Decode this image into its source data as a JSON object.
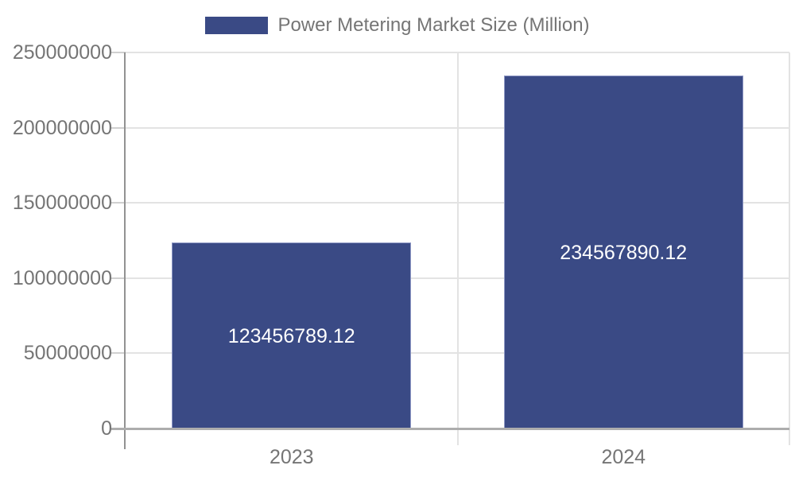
{
  "chart_data": {
    "type": "bar",
    "title": "",
    "legend": "Power Metering Market Size (Million)",
    "legend_position": "top",
    "categories": [
      "2023",
      "2024"
    ],
    "series": [
      {
        "name": "Power Metering Market Size (Million)",
        "values": [
          123456789.12,
          234567890.12
        ],
        "value_labels": [
          "123456789.12",
          "234567890.12"
        ]
      }
    ],
    "ylim": [
      0,
      250000000
    ],
    "yticks": [
      0,
      50000000,
      100000000,
      150000000,
      200000000,
      250000000
    ],
    "ytick_labels": [
      "0",
      "50000000",
      "100000000",
      "150000000",
      "200000000",
      "250000000"
    ],
    "grid": true,
    "colors": {
      "bar": "#3a4a85",
      "bar_edge": "#8d97c4",
      "axis_text": "#757575",
      "gridline": "#e3e3e3",
      "y_axis_line": "#929292",
      "x_axis_line": "#adadad",
      "value_label": "#ffffff",
      "background": "#ffffff"
    }
  }
}
